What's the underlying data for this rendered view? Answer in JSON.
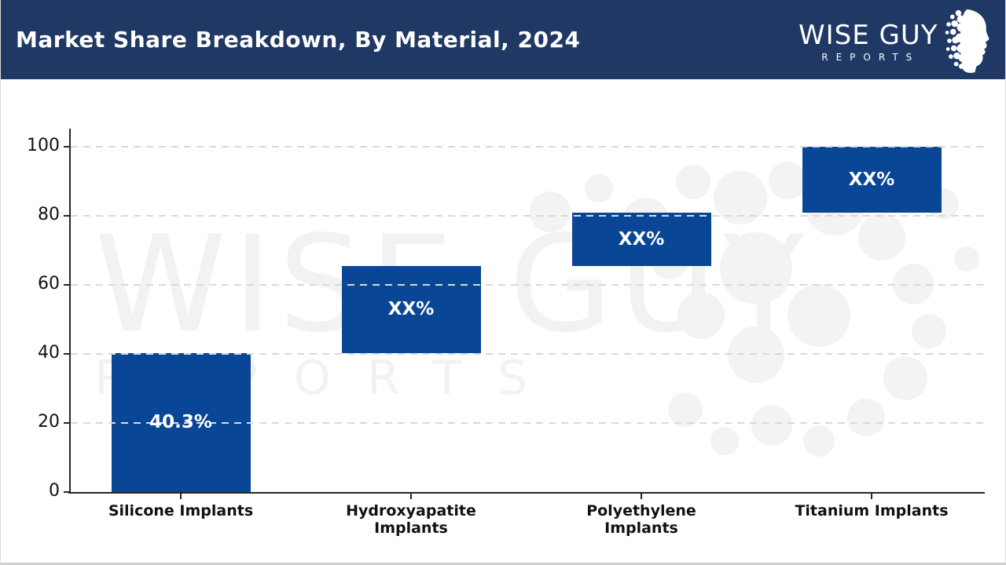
{
  "header": {
    "title": "Market Share Breakdown, By Material, 2024",
    "logo": {
      "wordmark": "WISE GUY",
      "subtext": "REPORTS"
    }
  },
  "watermark": {
    "line1": "WISE GUY",
    "line2": "REPORTS"
  },
  "colors": {
    "header_bg": "#1f3864",
    "bar": "#0a4696",
    "axis": "#262626",
    "grid": "#d9d9d9",
    "bar_label": "#ffffff",
    "watermark": "#f2f2f2"
  },
  "chart_data": {
    "type": "bar",
    "subtype": "waterfall",
    "title": "Market Share Breakdown, By Material, 2024",
    "xlabel": "",
    "ylabel": "",
    "ylim": [
      0,
      100
    ],
    "yticks": [
      0,
      20,
      40,
      60,
      80,
      100
    ],
    "grid": "horizontal-dashed-above-bars",
    "legend": "none",
    "bar_color": "#0a4696",
    "categories": [
      "Silicone Implants",
      "Hydroxyapatite Implants",
      "Polyethylene Implants",
      "Titanium Implants"
    ],
    "segments": [
      {
        "category": "Silicone Implants",
        "category_lines": [
          "Silicone Implants"
        ],
        "start": 0,
        "end": 40.3,
        "value": 40.3,
        "label": "40.3%"
      },
      {
        "category": "Hydroxyapatite Implants",
        "category_lines": [
          "Hydroxyapatite",
          "Implants"
        ],
        "start": 40.3,
        "end": 65.4,
        "value": 25.1,
        "label": "XX%"
      },
      {
        "category": "Polyethylene Implants",
        "category_lines": [
          "Polyethylene",
          "Implants"
        ],
        "start": 65.4,
        "end": 80.8,
        "value": 15.4,
        "label": "XX%"
      },
      {
        "category": "Titanium Implants",
        "category_lines": [
          "Titanium Implants"
        ],
        "start": 80.8,
        "end": 100,
        "value": 19.2,
        "label": "XX%"
      }
    ]
  }
}
